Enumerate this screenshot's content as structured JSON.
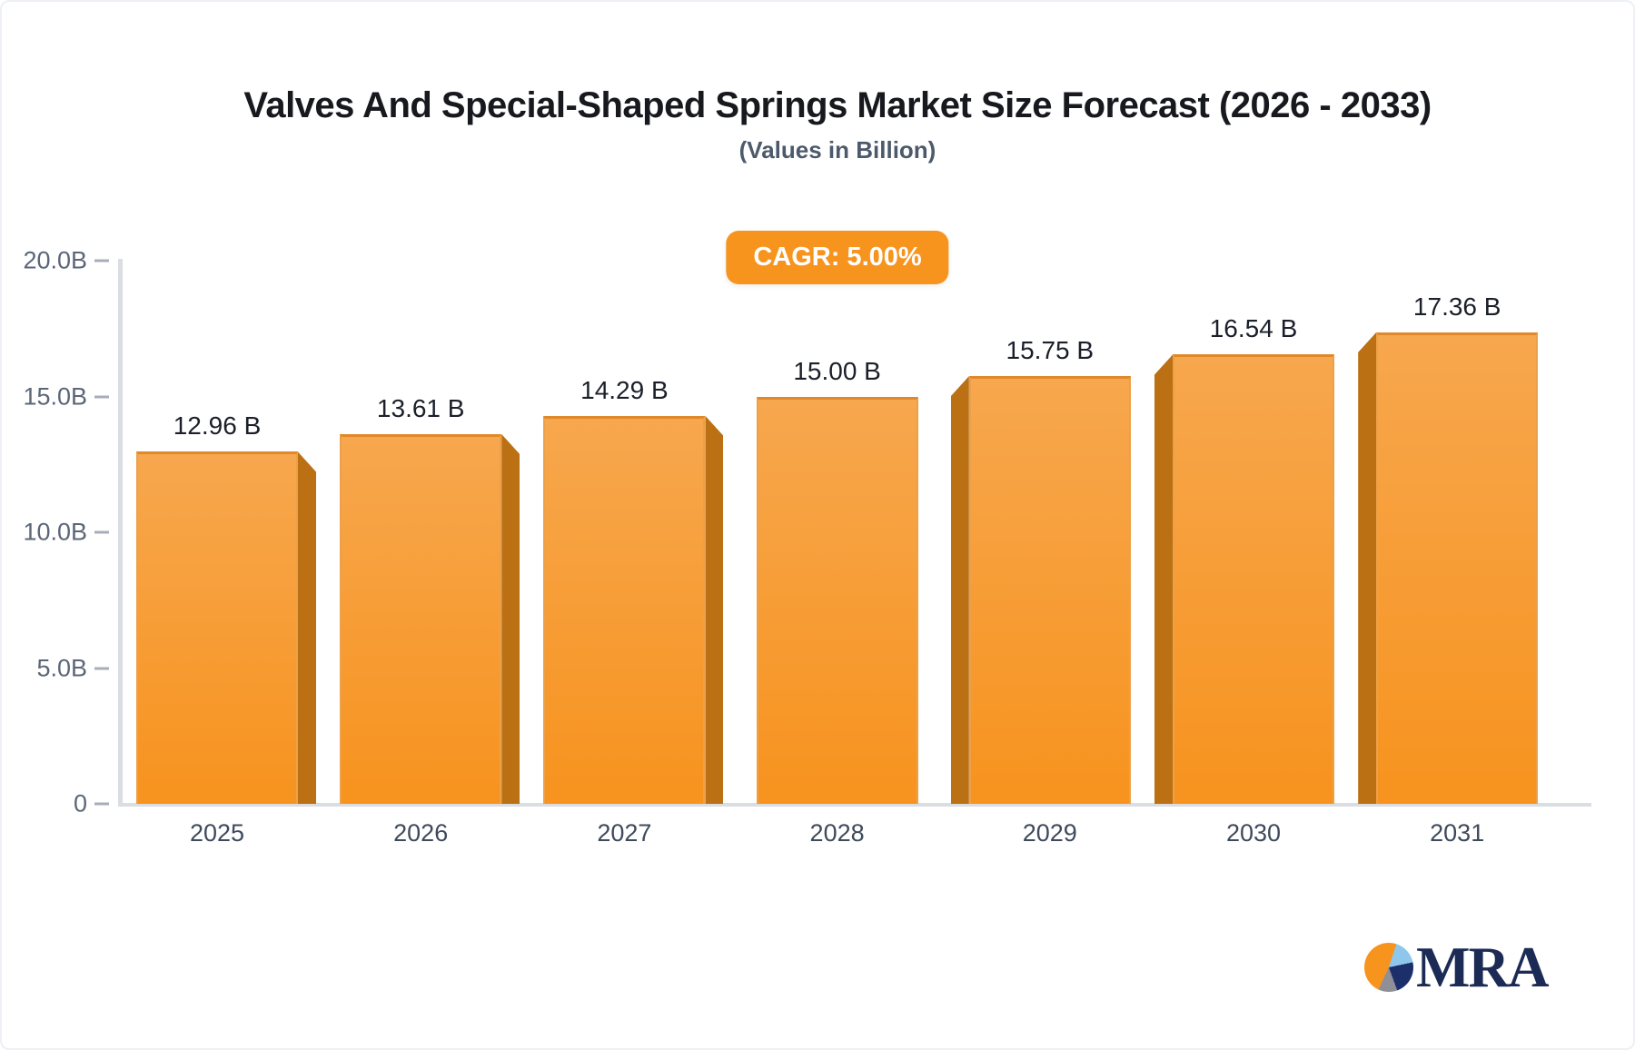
{
  "header": {
    "title": "Valves And Special-Shaped Springs Market Size Forecast (2026 - 2033)",
    "subtitle": "(Values in Billion)"
  },
  "badge": {
    "label": "CAGR: 5.00%"
  },
  "logo": {
    "text": "MRA"
  },
  "colors": {
    "bar_face_top": "#F7A74E",
    "bar_face_bottom": "#F7931E",
    "bar_face_edge": "#E1892A",
    "bar_side": "#BA7013",
    "badge_bg": "#F7941E",
    "axis_line": "#DADDE2",
    "tick_text": "#5B6677",
    "year_text": "#3E4A5C",
    "value_text": "#1B1F29",
    "logo_navy": "#1C2B55",
    "logo_blue": "#8EC7EB",
    "logo_gray": "#8F8F97",
    "logo_orange": "#F7941E"
  },
  "chart_data": {
    "type": "bar",
    "title": "Valves And Special-Shaped Springs Market Size Forecast (2026 - 2033)",
    "subtitle": "(Values in Billion)",
    "annotation": "CAGR: 5.00%",
    "categories": [
      "2025",
      "2026",
      "2027",
      "2028",
      "2029",
      "2030",
      "2031"
    ],
    "values": [
      12.96,
      13.61,
      14.29,
      15.0,
      15.75,
      16.54,
      17.36
    ],
    "value_labels": [
      "12.96 B",
      "13.61 B",
      "14.29 B",
      "15.00 B",
      "15.75 B",
      "16.54 B",
      "17.36 B"
    ],
    "xlabel": "",
    "ylabel": "",
    "ylim": [
      0,
      20
    ],
    "yticks": [
      {
        "value": 0,
        "label": "0"
      },
      {
        "value": 5,
        "label": "5.0B"
      },
      {
        "value": 10,
        "label": "10.0B"
      },
      {
        "value": 15,
        "label": "15.0B"
      },
      {
        "value": 20,
        "label": "20.0B"
      }
    ],
    "grid": false,
    "legend": "none",
    "bar_style": "3d-central-perspective"
  }
}
